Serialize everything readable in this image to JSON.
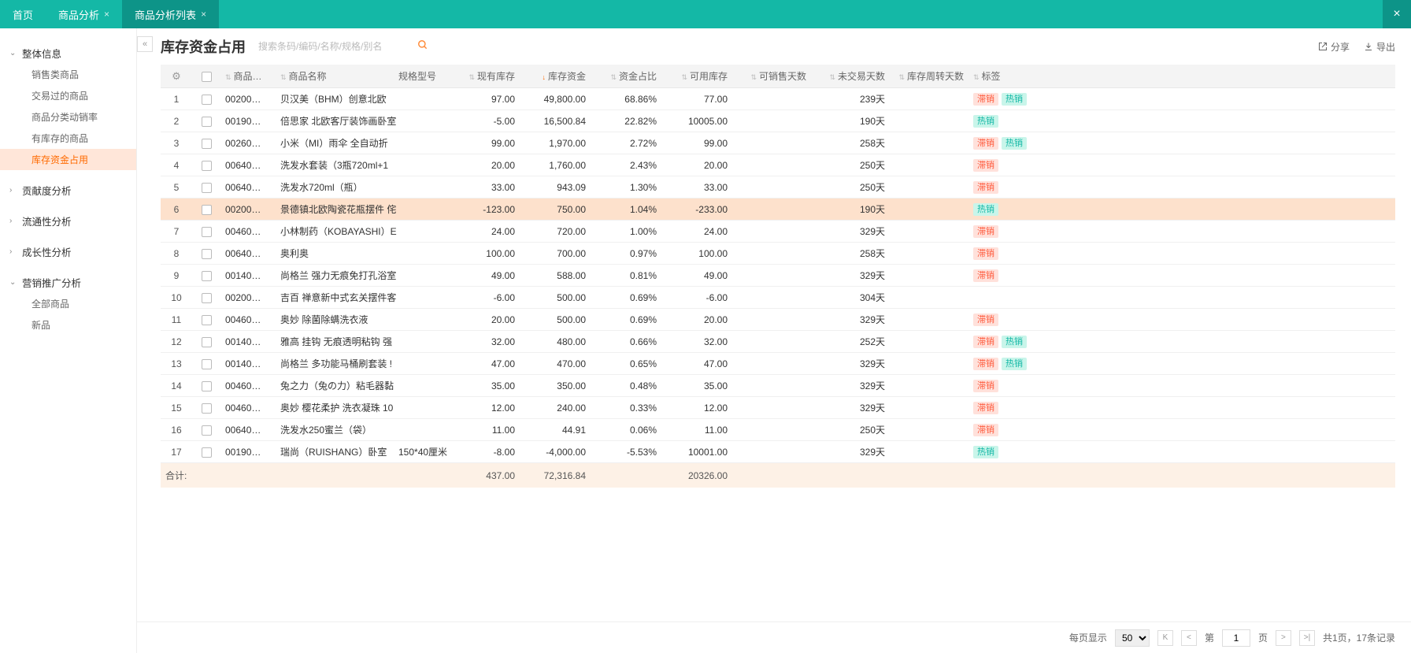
{
  "topbar": {
    "tabs": [
      {
        "label": "首页",
        "closable": false,
        "active": false
      },
      {
        "label": "商品分析",
        "closable": true,
        "active": false
      },
      {
        "label": "商品分析列表",
        "closable": true,
        "active": true
      }
    ]
  },
  "sidebar": {
    "groups": [
      {
        "label": "整体信息",
        "collapsed": false,
        "items": [
          {
            "label": "销售类商品",
            "selected": false
          },
          {
            "label": "交易过的商品",
            "selected": false
          },
          {
            "label": "商品分类动销率",
            "selected": false
          },
          {
            "label": "有库存的商品",
            "selected": false
          },
          {
            "label": "库存资金占用",
            "selected": true
          }
        ]
      },
      {
        "label": "贡献度分析",
        "collapsed": true,
        "items": []
      },
      {
        "label": "流通性分析",
        "collapsed": true,
        "items": []
      },
      {
        "label": "成长性分析",
        "collapsed": true,
        "items": []
      },
      {
        "label": "营销推广分析",
        "collapsed": false,
        "items": [
          {
            "label": "全部商品",
            "selected": false
          },
          {
            "label": "新品",
            "selected": false
          }
        ]
      }
    ]
  },
  "page": {
    "title": "库存资金占用",
    "search_placeholder": "搜索条码/编码/名称/规格/别名",
    "share_label": "分享",
    "export_label": "导出"
  },
  "columns": {
    "idx": "",
    "code": "商品…",
    "name": "商品名称",
    "spec": "规格型号",
    "stock": "现有库存",
    "fund": "库存资金",
    "ratio": "资金占比",
    "avail": "可用库存",
    "saleDays": "可销售天数",
    "noTradeDays": "未交易天数",
    "turnDays": "库存周转天数",
    "tags": "标签"
  },
  "sort": {
    "column": "fund",
    "dir": "desc"
  },
  "rows": [
    {
      "idx": 1,
      "code": "00200…",
      "name": "贝汉美（BHM）创意北欧",
      "spec": "",
      "stock": "97.00",
      "fund": "49,800.00",
      "ratio": "68.86%",
      "avail": "77.00",
      "sale": "",
      "notr": "239天",
      "turn": "",
      "tags": [
        "slow",
        "hot"
      ],
      "hl": false
    },
    {
      "idx": 2,
      "code": "00190…",
      "name": "倍思家 北欧客厅装饰画卧室",
      "spec": "",
      "stock": "-5.00",
      "fund": "16,500.84",
      "ratio": "22.82%",
      "avail": "10005.00",
      "sale": "",
      "notr": "190天",
      "turn": "",
      "tags": [
        "hot"
      ],
      "hl": false
    },
    {
      "idx": 3,
      "code": "00260…",
      "name": "小米（MI）雨伞 全自动折",
      "spec": "",
      "stock": "99.00",
      "fund": "1,970.00",
      "ratio": "2.72%",
      "avail": "99.00",
      "sale": "",
      "notr": "258天",
      "turn": "",
      "tags": [
        "slow",
        "hot"
      ],
      "hl": false
    },
    {
      "idx": 4,
      "code": "00640…",
      "name": "洗发水套装（3瓶720ml+1",
      "spec": "",
      "stock": "20.00",
      "fund": "1,760.00",
      "ratio": "2.43%",
      "avail": "20.00",
      "sale": "",
      "notr": "250天",
      "turn": "",
      "tags": [
        "slow"
      ],
      "hl": false
    },
    {
      "idx": 5,
      "code": "00640…",
      "name": "洗发水720ml（瓶）",
      "spec": "",
      "stock": "33.00",
      "fund": "943.09",
      "ratio": "1.30%",
      "avail": "33.00",
      "sale": "",
      "notr": "250天",
      "turn": "",
      "tags": [
        "slow"
      ],
      "hl": false
    },
    {
      "idx": 6,
      "code": "00200…",
      "name": "景德镇北欧陶瓷花瓶摆件 侘",
      "spec": "",
      "stock": "-123.00",
      "fund": "750.00",
      "ratio": "1.04%",
      "avail": "-233.00",
      "sale": "",
      "notr": "190天",
      "turn": "",
      "tags": [
        "hot"
      ],
      "hl": true
    },
    {
      "idx": 7,
      "code": "00460…",
      "name": "小林制药（KOBAYASHI）E",
      "spec": "",
      "stock": "24.00",
      "fund": "720.00",
      "ratio": "1.00%",
      "avail": "24.00",
      "sale": "",
      "notr": "329天",
      "turn": "",
      "tags": [
        "slow"
      ],
      "hl": false
    },
    {
      "idx": 8,
      "code": "00640…",
      "name": "奥利奥",
      "spec": "",
      "stock": "100.00",
      "fund": "700.00",
      "ratio": "0.97%",
      "avail": "100.00",
      "sale": "",
      "notr": "258天",
      "turn": "",
      "tags": [
        "slow"
      ],
      "hl": false
    },
    {
      "idx": 9,
      "code": "00140…",
      "name": "尚格兰 强力无痕免打孔浴室",
      "spec": "",
      "stock": "49.00",
      "fund": "588.00",
      "ratio": "0.81%",
      "avail": "49.00",
      "sale": "",
      "notr": "329天",
      "turn": "",
      "tags": [
        "slow"
      ],
      "hl": false
    },
    {
      "idx": 10,
      "code": "00200…",
      "name": "吉百 禅意新中式玄关摆件客",
      "spec": "",
      "stock": "-6.00",
      "fund": "500.00",
      "ratio": "0.69%",
      "avail": "-6.00",
      "sale": "",
      "notr": "304天",
      "turn": "",
      "tags": [],
      "hl": false
    },
    {
      "idx": 11,
      "code": "00460…",
      "name": "奥妙 除菌除螨洗衣液",
      "spec": "",
      "stock": "20.00",
      "fund": "500.00",
      "ratio": "0.69%",
      "avail": "20.00",
      "sale": "",
      "notr": "329天",
      "turn": "",
      "tags": [
        "slow"
      ],
      "hl": false
    },
    {
      "idx": 12,
      "code": "00140…",
      "name": "雅高 挂钩 无痕透明粘钩 强",
      "spec": "",
      "stock": "32.00",
      "fund": "480.00",
      "ratio": "0.66%",
      "avail": "32.00",
      "sale": "",
      "notr": "252天",
      "turn": "",
      "tags": [
        "slow",
        "hot"
      ],
      "hl": false
    },
    {
      "idx": 13,
      "code": "00140…",
      "name": "尚格兰 多功能马桶刷套装 !",
      "spec": "",
      "stock": "47.00",
      "fund": "470.00",
      "ratio": "0.65%",
      "avail": "47.00",
      "sale": "",
      "notr": "329天",
      "turn": "",
      "tags": [
        "slow",
        "hot"
      ],
      "hl": false
    },
    {
      "idx": 14,
      "code": "00460…",
      "name": "兔之力（兔の力）粘毛器黏",
      "spec": "",
      "stock": "35.00",
      "fund": "350.00",
      "ratio": "0.48%",
      "avail": "35.00",
      "sale": "",
      "notr": "329天",
      "turn": "",
      "tags": [
        "slow"
      ],
      "hl": false
    },
    {
      "idx": 15,
      "code": "00460…",
      "name": "奥妙 樱花柔护 洗衣凝珠 10",
      "spec": "",
      "stock": "12.00",
      "fund": "240.00",
      "ratio": "0.33%",
      "avail": "12.00",
      "sale": "",
      "notr": "329天",
      "turn": "",
      "tags": [
        "slow"
      ],
      "hl": false
    },
    {
      "idx": 16,
      "code": "00640…",
      "name": "洗发水250蜜兰（袋）",
      "spec": "",
      "stock": "11.00",
      "fund": "44.91",
      "ratio": "0.06%",
      "avail": "11.00",
      "sale": "",
      "notr": "250天",
      "turn": "",
      "tags": [
        "slow"
      ],
      "hl": false
    },
    {
      "idx": 17,
      "code": "00190…",
      "name": "瑞尚（RUISHANG）卧室",
      "spec": "150*40厘米",
      "stock": "-8.00",
      "fund": "-4,000.00",
      "ratio": "-5.53%",
      "avail": "10001.00",
      "sale": "",
      "notr": "329天",
      "turn": "",
      "tags": [
        "hot"
      ],
      "hl": false
    }
  ],
  "tags": {
    "slow": "滞销",
    "hot": "热销"
  },
  "totals": {
    "label": "合计:",
    "stock": "437.00",
    "fund": "72,316.84",
    "ratio": "",
    "avail": "20326.00"
  },
  "pager": {
    "perpage_label": "每页显示",
    "perpage_value": "50",
    "page_prefix": "第",
    "page_value": "1",
    "page_suffix": "页",
    "summary": "共1页，17条记录"
  }
}
